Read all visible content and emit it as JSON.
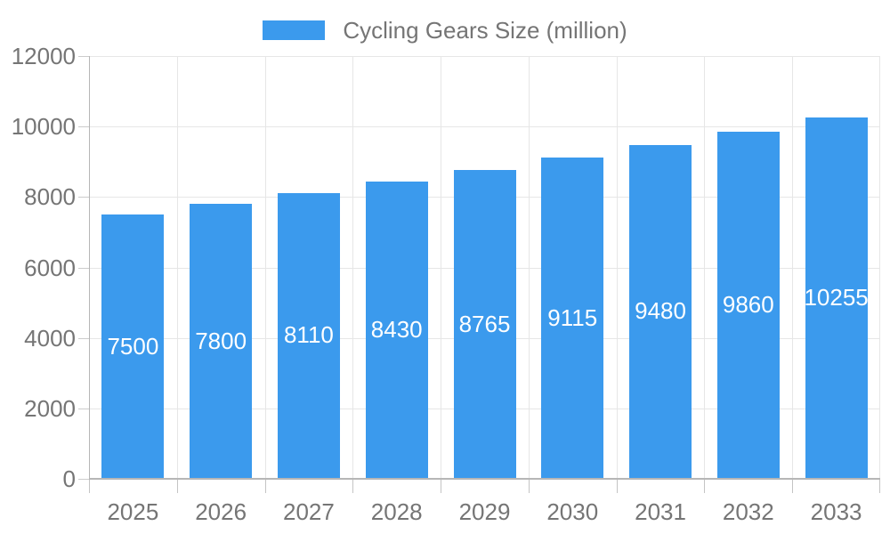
{
  "chart_data": {
    "type": "bar",
    "title": "Cycling Gears Size (million)",
    "legend": {
      "position": "top",
      "label": "Cycling Gears Size (million)"
    },
    "categories": [
      "2025",
      "2026",
      "2027",
      "2028",
      "2029",
      "2030",
      "2031",
      "2032",
      "2033"
    ],
    "series": [
      {
        "name": "Cycling Gears Size (million)",
        "values": [
          7500,
          7800,
          8110,
          8430,
          8765,
          9115,
          9480,
          9860,
          10255
        ]
      }
    ],
    "data_labels": [
      "7500",
      "7800",
      "8110",
      "8430",
      "8765",
      "9115",
      "9480",
      "9860",
      "10255"
    ],
    "xlabel": "",
    "ylabel": "",
    "ylim": [
      0,
      12000
    ],
    "yticks": [
      0,
      2000,
      4000,
      6000,
      8000,
      10000,
      12000
    ],
    "grid": true,
    "colors": {
      "bar": "#3b9aed",
      "grid": "#e6e6e6",
      "axis": "#b6b6b6",
      "tick": "#c4c4c4",
      "text": "#757575",
      "bar_label_text": "#ffffff",
      "background": "#ffffff"
    }
  }
}
